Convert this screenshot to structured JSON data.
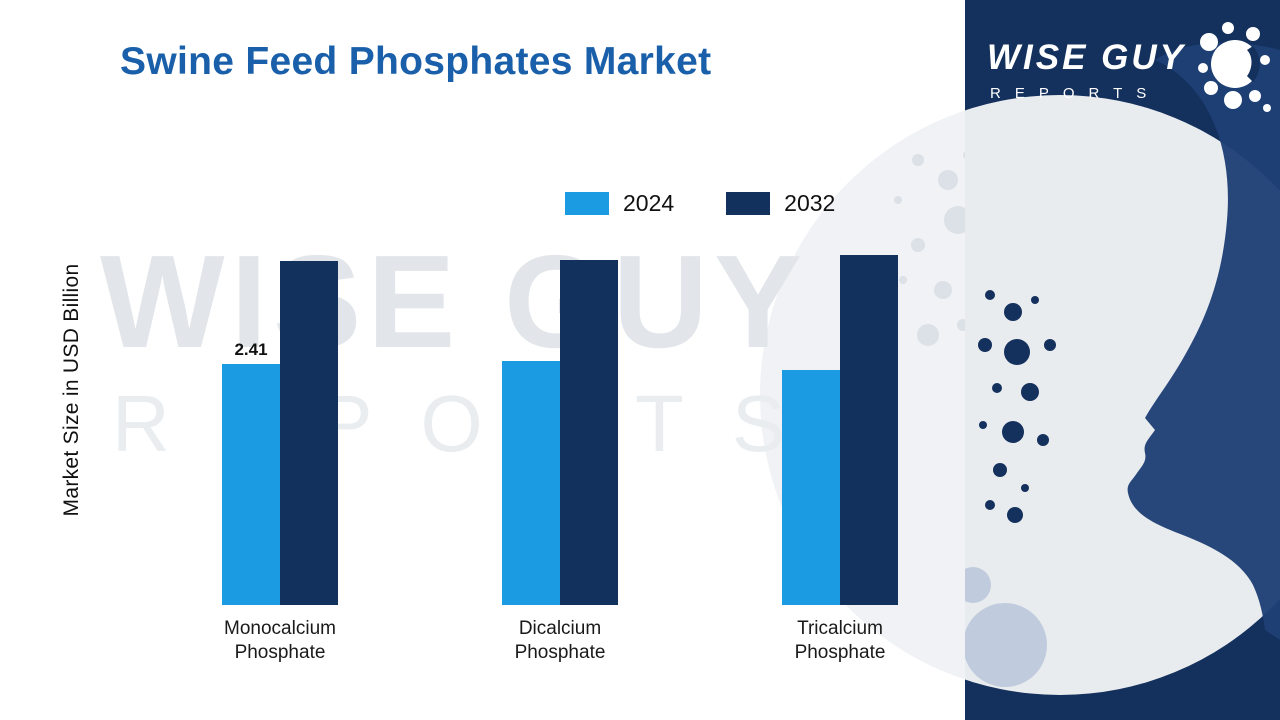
{
  "header": {
    "title": "Swine Feed Phosphates Market"
  },
  "watermark": {
    "line1": "WISE GUY",
    "line2": "REPORTS"
  },
  "brand": {
    "wordmark": "WISE GUY",
    "wordmark_sub": "REPORTS"
  },
  "colors": {
    "title_blue": "#1a5fa9",
    "bar_2024": "#1b9ce2",
    "bar_2032": "#12315d",
    "panel_navy": "#14305c"
  },
  "chart_data": {
    "type": "bar",
    "title": "Swine Feed Phosphates Market",
    "xlabel": "",
    "ylabel": "Market Size in USD Billion",
    "categories": [
      "Monocalcium Phosphate",
      "Dicalcium Phosphate",
      "Tricalcium Phosphate"
    ],
    "series": [
      {
        "name": "2024",
        "color": "#1b9ce2",
        "values": [
          2.41,
          2.44,
          2.35
        ],
        "data_labels": [
          "2.41",
          "",
          ""
        ]
      },
      {
        "name": "2032",
        "color": "#12315d",
        "values": [
          3.44,
          3.45,
          3.5
        ],
        "data_labels": [
          "",
          "",
          ""
        ]
      }
    ],
    "ylim": [
      0,
      3.75
    ],
    "legend_position": "top-center",
    "grid": false
  }
}
